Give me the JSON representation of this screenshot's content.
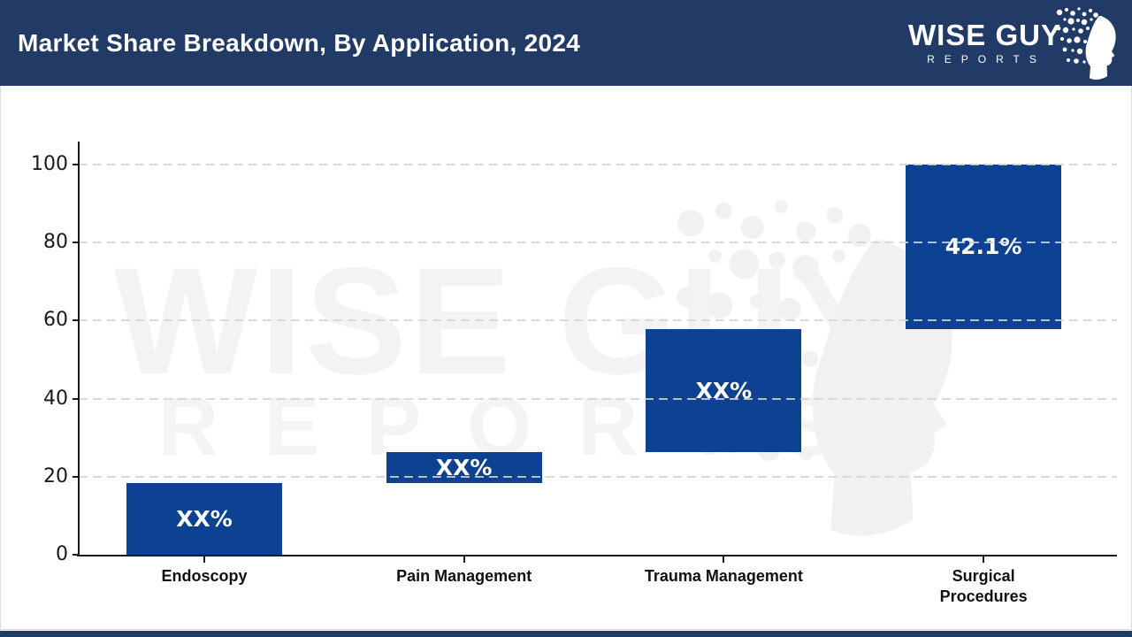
{
  "header": {
    "title": "Market Share Breakdown, By Application, 2024",
    "bg_color": "#213a66",
    "logo": {
      "wordmark": "WISE GUY",
      "subtext": "REPORTS"
    }
  },
  "watermark": {
    "wordmark": "WISE GUY",
    "subtext": "REPORTS"
  },
  "footer": {
    "bg_color": "#213a66"
  },
  "chart_data": {
    "type": "bar",
    "variant": "floating-segment waterfall, segments sum to 100%",
    "title": "Market Share Breakdown, By Application, 2024",
    "categories": [
      "Endoscopy",
      "Pain Management",
      "Trauma Management",
      "Surgical Procedures"
    ],
    "category_label_lines": [
      [
        "Endoscopy"
      ],
      [
        "Pain Management"
      ],
      [
        "Trauma Management"
      ],
      [
        "Surgical",
        "Procedures"
      ]
    ],
    "bars": [
      {
        "category": "Endoscopy",
        "from": 0,
        "to": 18.4,
        "label": "XX%"
      },
      {
        "category": "Pain Management",
        "from": 18.4,
        "to": 26.4,
        "label": "XX%"
      },
      {
        "category": "Trauma Management",
        "from": 26.4,
        "to": 57.9,
        "label": "XX%"
      },
      {
        "category": "Surgical Procedures",
        "from": 57.9,
        "to": 100,
        "label": "42.1%"
      }
    ],
    "yticks": [
      0,
      20,
      40,
      60,
      80,
      100
    ],
    "ylim": [
      0,
      106
    ],
    "xlabel": "",
    "ylabel": "",
    "grid": true,
    "grid_style": "dashed, drawn above bars",
    "legend": false,
    "bar_color": "#0d4191",
    "bar_label_color": "#ffffff",
    "axis_color": "#1a1a1a",
    "tick_label_color": "#1a1a1a"
  }
}
